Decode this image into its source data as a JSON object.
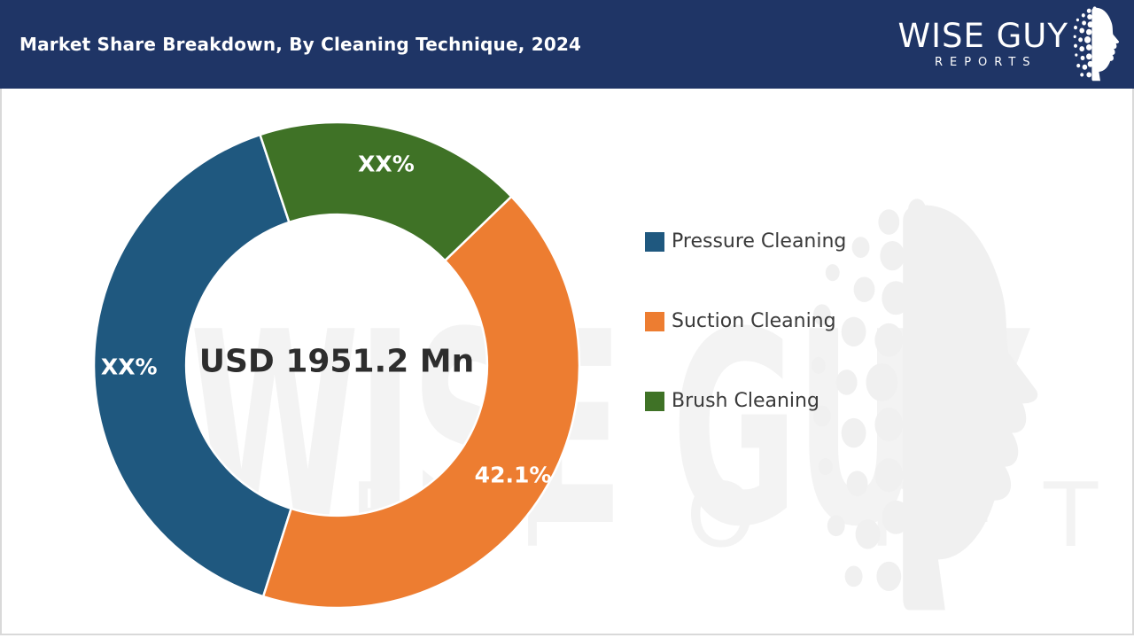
{
  "header": {
    "title": "Market Share Breakdown, By Cleaning Technique, 2024",
    "logo": {
      "line1": "WISE GUY",
      "line2": "REPORTS"
    }
  },
  "watermark": {
    "line1": "WISE GUY",
    "line2": "R E P O R T S"
  },
  "chart_data": {
    "type": "pie",
    "subtype": "donut",
    "title": "Market Share Breakdown, By Cleaning Technique, 2024",
    "center_label": "USD 1951.2 Mn",
    "unit": "percent of market share",
    "start_angle_deg": 108.4,
    "direction": "counterclockwise",
    "inner_radius_ratio": 0.62,
    "label_radius_ratio": 0.855,
    "legend_position": "right",
    "categories": [
      "Pressure Cleaning",
      "Suction Cleaning",
      "Brush Cleaning"
    ],
    "segments": [
      {
        "name": "Pressure Cleaning",
        "label": "XX%",
        "value_pct": 40.0,
        "color": "#1F587F"
      },
      {
        "name": "Suction Cleaning",
        "label": "42.1%",
        "value_pct": 42.1,
        "color": "#ED7D31"
      },
      {
        "name": "Brush Cleaning",
        "label": "XX%",
        "value_pct": 17.9,
        "color": "#3F7226"
      }
    ]
  },
  "colors": {
    "header_background": "#1F3566",
    "card_border": "#D9D9D9",
    "center_text": "#2D2D2D",
    "legend_text": "#3A3A3A",
    "watermark": "#F3F3F3",
    "slice_separator": "#FFFFFF"
  }
}
